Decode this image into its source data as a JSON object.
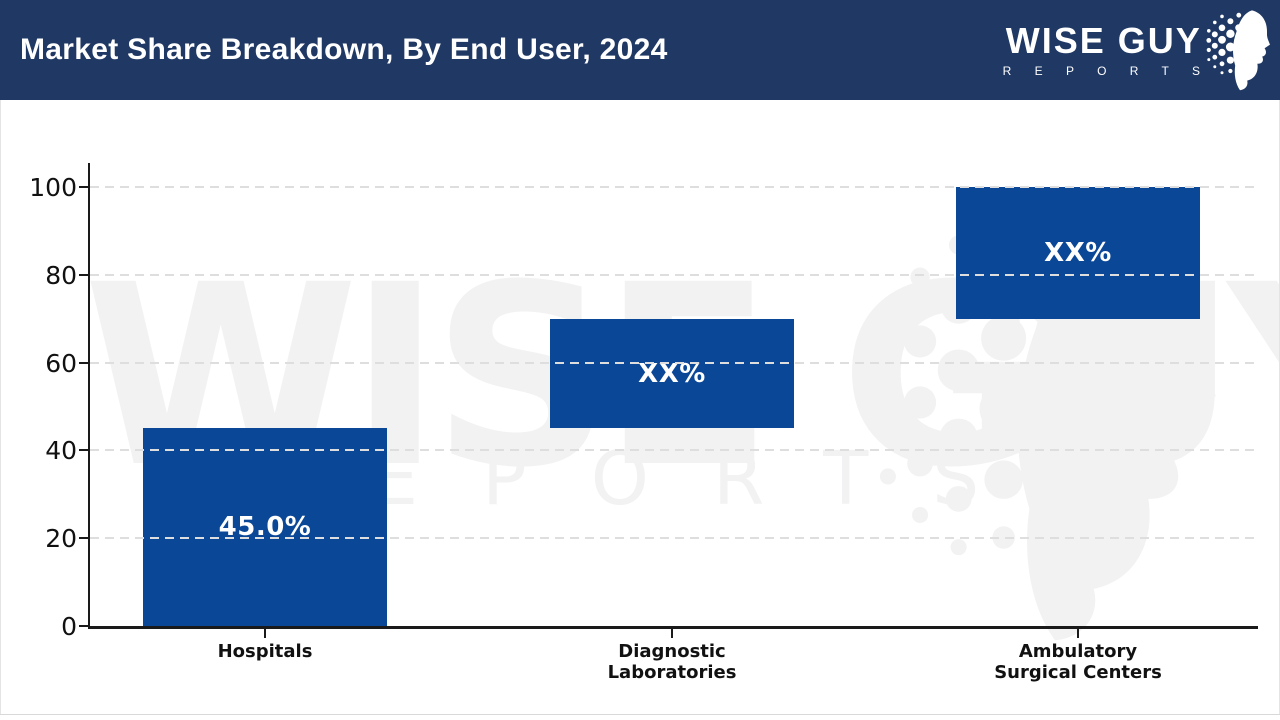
{
  "header": {
    "title": "Market Share Breakdown, By End User, 2024",
    "logo": {
      "wordmark": "WISE GUY",
      "subtext": "R E P O R T S"
    }
  },
  "watermark": {
    "line1": "WISE GUY",
    "line2": "REPORTS"
  },
  "colors": {
    "header_bg": "#1f3864",
    "bar": "#0b4797",
    "bar_label": "#ffffff",
    "grid": "#dedede",
    "axis": "#1a1a1a",
    "watermark": "#f2f2f3"
  },
  "chart_data": {
    "type": "bar",
    "subtype": "waterfall",
    "title": "Market Share Breakdown, By End User, 2024",
    "xlabel": "",
    "ylabel": "",
    "ylim": [
      0,
      100
    ],
    "yticks": [
      0,
      20,
      40,
      60,
      80,
      100
    ],
    "grid": "horizontal-dashed",
    "legend": "none",
    "categories": [
      "Hospitals",
      "Diagnostic Laboratories",
      "Ambulatory Surgical Centers"
    ],
    "category_label_lines": [
      [
        "Hospitals"
      ],
      [
        "Diagnostic",
        "Laboratories"
      ],
      [
        "Ambulatory",
        "Surgical Centers"
      ]
    ],
    "segments": [
      {
        "category": "Hospitals",
        "start": 0,
        "end": 45,
        "label": "45.0%"
      },
      {
        "category": "Diagnostic Laboratories",
        "start": 45,
        "end": 70,
        "label": "XX%"
      },
      {
        "category": "Ambulatory Surgical Centers",
        "start": 70,
        "end": 100,
        "label": "XX%"
      }
    ]
  }
}
